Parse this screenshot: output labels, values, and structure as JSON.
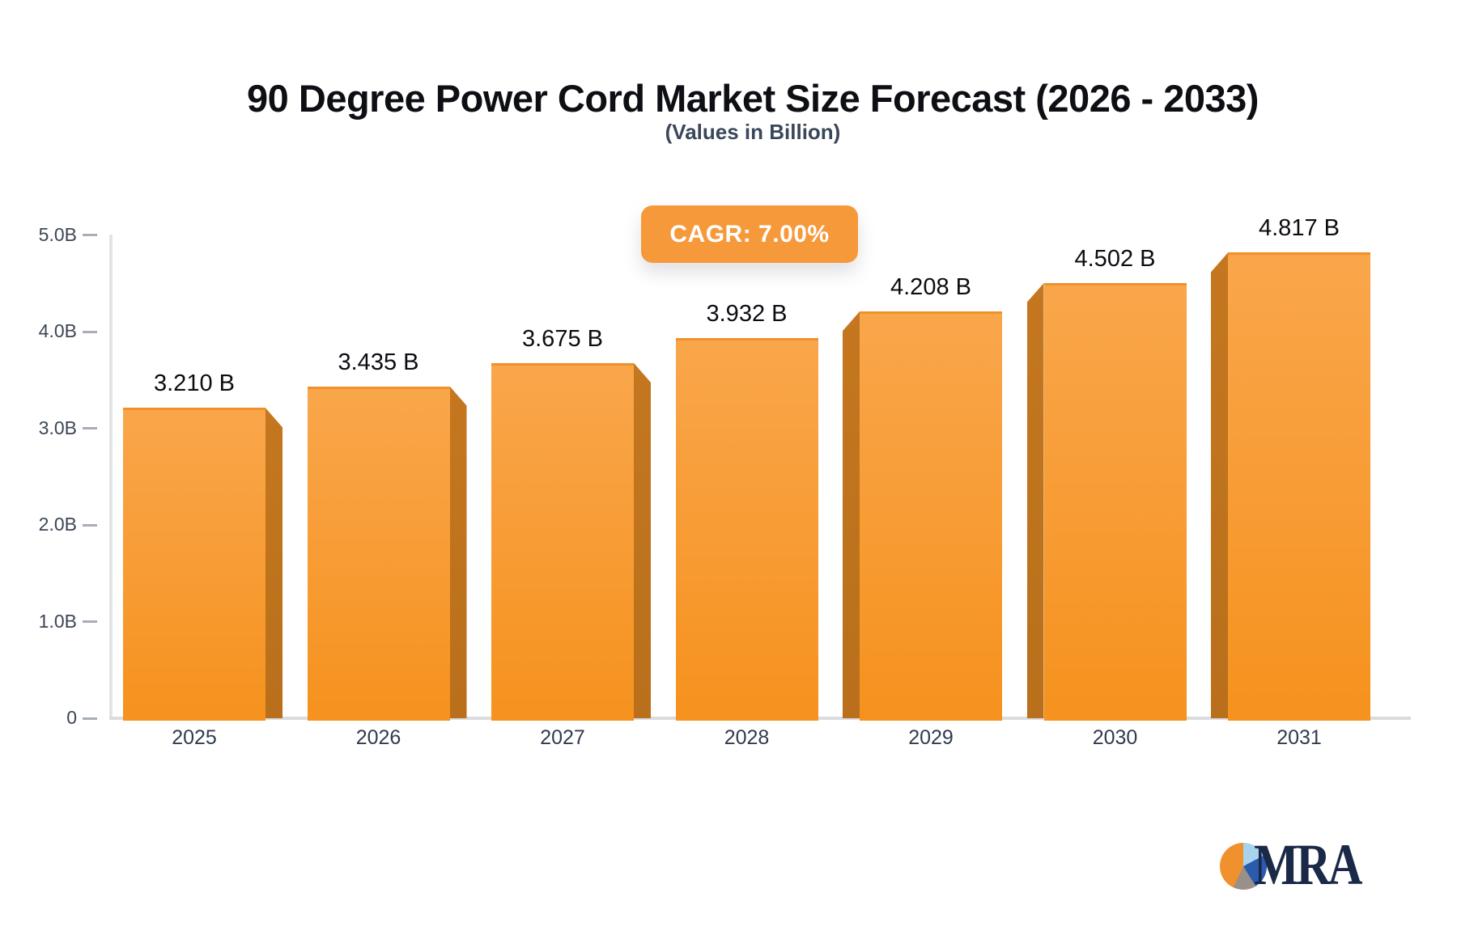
{
  "header": {
    "title": "90 Degree Power Cord Market Size Forecast (2026 - 2033)",
    "subtitle": "(Values in Billion)",
    "cagr_badge": "CAGR: 7.00%"
  },
  "chart_data": {
    "type": "bar",
    "categories": [
      "2025",
      "2026",
      "2027",
      "2028",
      "2029",
      "2030",
      "2031"
    ],
    "values": [
      3.21,
      3.435,
      3.675,
      3.932,
      4.208,
      4.502,
      4.817
    ],
    "value_labels": [
      "3.210 B",
      "3.435 B",
      "3.675 B",
      "3.932 B",
      "4.208 B",
      "4.502 B",
      "4.817 B"
    ],
    "title": "90 Degree Power Cord Market Size Forecast (2026 - 2033)",
    "subtitle": "(Values in Billion)",
    "annotation": "CAGR: 7.00%",
    "xlabel": "",
    "ylabel": "",
    "ylim": [
      0,
      5
    ],
    "yticks": [
      {
        "value": 0,
        "label": "0"
      },
      {
        "value": 1,
        "label": "1.0B"
      },
      {
        "value": 2,
        "label": "2.0B"
      },
      {
        "value": 3,
        "label": "3.0B"
      },
      {
        "value": 4,
        "label": "4.0B"
      },
      {
        "value": 5,
        "label": "5.0B"
      }
    ],
    "grid": false,
    "legend": null,
    "style": "3d-perspective-bars"
  },
  "logo": {
    "text": "MRA",
    "icon": "pie-chart-icon"
  },
  "colors": {
    "accent": "#f6993b",
    "bar-top": "#f9a64b",
    "bar-bottom": "#f6921e",
    "bar-side": "#be721c",
    "axis-color": "#d9dbde",
    "axis-color2": "#e1e3e7",
    "tick-color": "#a8adb6",
    "ytick-text": "#3d4656",
    "xtick-text": "#303b4f",
    "value-text": "#0b0d12",
    "title-text": "#0d0f14",
    "subtitle-text": "#3a4759",
    "logo-navy": "#1a2947"
  }
}
